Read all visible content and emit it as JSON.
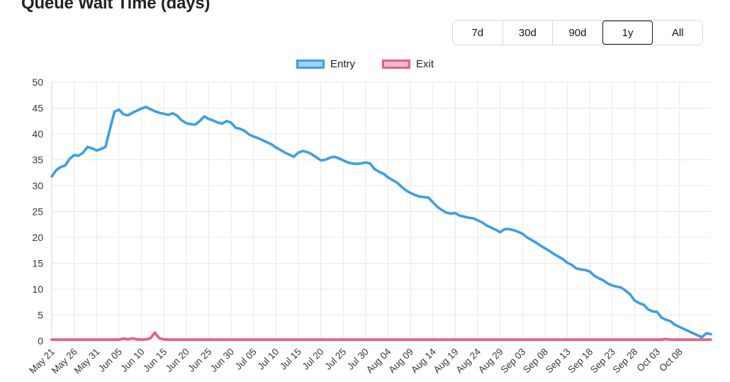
{
  "title": "Queue Wait Time (days)",
  "range_buttons": {
    "options": [
      "7d",
      "30d",
      "90d",
      "1y",
      "All"
    ],
    "selected": "1y"
  },
  "legend": [
    {
      "label": "Entry",
      "border": "#3a9fe8",
      "fill": "#9ed1f5"
    },
    {
      "label": "Exit",
      "border": "#ef5a7d",
      "fill": "#f9bcca"
    }
  ],
  "chart_data": {
    "type": "line",
    "title": "Queue Wait Time (days)",
    "xlabel": "",
    "ylabel": "",
    "ylim": [
      0,
      50
    ],
    "y_ticks": [
      0,
      5,
      10,
      15,
      20,
      25,
      30,
      35,
      40,
      45,
      50
    ],
    "grid": true,
    "legend_position": "top",
    "x_unit": "day",
    "x_tick_every": 5,
    "x_tick_labels": [
      "May 21",
      "May 26",
      "May 31",
      "Jun 05",
      "Jun 10",
      "Jun 15",
      "Jun 20",
      "Jun 25",
      "Jun 30",
      "Jul 05",
      "Jul 10",
      "Jul 15",
      "Jul 20",
      "Jul 25",
      "Jul 30",
      "Aug 04",
      "Aug 09",
      "Aug 14",
      "Aug 19",
      "Aug 24",
      "Aug 29",
      "Sep 03",
      "Sep 08",
      "Sep 13",
      "Sep 18",
      "Sep 23",
      "Sep 28",
      "Oct 03",
      "Oct 08"
    ],
    "series": [
      {
        "name": "Entry",
        "color": "#3a9fe8",
        "values": [
          31.8,
          33.0,
          33.6,
          33.9,
          35.2,
          35.9,
          35.8,
          36.4,
          37.5,
          37.2,
          36.8,
          37.1,
          37.5,
          41.0,
          44.3,
          44.7,
          43.8,
          43.6,
          44.1,
          44.5,
          44.9,
          45.2,
          44.8,
          44.4,
          44.1,
          43.9,
          43.7,
          44.0,
          43.5,
          42.6,
          42.1,
          41.9,
          41.8,
          42.5,
          43.4,
          42.9,
          42.6,
          42.2,
          42.0,
          42.5,
          42.2,
          41.2,
          41.0,
          40.6,
          39.9,
          39.5,
          39.2,
          38.8,
          38.4,
          38.0,
          37.4,
          36.9,
          36.4,
          36.0,
          35.6,
          36.4,
          36.7,
          36.5,
          36.1,
          35.5,
          34.9,
          35.0,
          35.4,
          35.6,
          35.3,
          34.9,
          34.5,
          34.3,
          34.2,
          34.3,
          34.5,
          34.3,
          33.2,
          32.7,
          32.3,
          31.6,
          31.1,
          30.6,
          29.8,
          29.1,
          28.6,
          28.2,
          27.9,
          27.8,
          27.7,
          26.8,
          25.9,
          25.3,
          24.8,
          24.6,
          24.7,
          24.2,
          24.0,
          23.8,
          23.7,
          23.3,
          22.9,
          22.3,
          21.9,
          21.5,
          21.0,
          21.6,
          21.6,
          21.4,
          21.1,
          20.7,
          20.0,
          19.5,
          19.0,
          18.4,
          17.9,
          17.4,
          16.8,
          16.3,
          15.8,
          15.1,
          14.7,
          14.0,
          13.8,
          13.7,
          13.4,
          12.6,
          12.1,
          11.7,
          11.1,
          10.7,
          10.5,
          10.3,
          9.7,
          9.0,
          7.8,
          7.3,
          7.0,
          6.1,
          5.7,
          5.6,
          4.5,
          4.1,
          3.8,
          3.1,
          2.7,
          2.3,
          1.9,
          1.5,
          1.1,
          0.7,
          1.5,
          1.3
        ]
      },
      {
        "name": "Exit",
        "color": "#ef5a7d",
        "values": [
          0.25,
          0.25,
          0.25,
          0.25,
          0.25,
          0.25,
          0.25,
          0.25,
          0.25,
          0.25,
          0.25,
          0.25,
          0.25,
          0.25,
          0.25,
          0.25,
          0.45,
          0.3,
          0.5,
          0.3,
          0.25,
          0.3,
          0.5,
          1.6,
          0.5,
          0.3,
          0.25,
          0.25,
          0.25,
          0.25,
          0.25,
          0.25,
          0.25,
          0.25,
          0.25,
          0.25,
          0.25,
          0.25,
          0.25,
          0.25,
          0.25,
          0.25,
          0.25,
          0.25,
          0.25,
          0.25,
          0.25,
          0.25,
          0.25,
          0.25,
          0.25,
          0.25,
          0.25,
          0.25,
          0.25,
          0.25,
          0.25,
          0.25,
          0.25,
          0.25,
          0.25,
          0.25,
          0.25,
          0.25,
          0.25,
          0.25,
          0.25,
          0.25,
          0.25,
          0.25,
          0.25,
          0.25,
          0.25,
          0.25,
          0.25,
          0.25,
          0.25,
          0.25,
          0.25,
          0.25,
          0.25,
          0.25,
          0.25,
          0.25,
          0.25,
          0.25,
          0.25,
          0.25,
          0.25,
          0.25,
          0.25,
          0.25,
          0.25,
          0.25,
          0.25,
          0.25,
          0.25,
          0.25,
          0.25,
          0.25,
          0.25,
          0.25,
          0.25,
          0.25,
          0.25,
          0.25,
          0.25,
          0.25,
          0.25,
          0.25,
          0.25,
          0.25,
          0.25,
          0.25,
          0.25,
          0.25,
          0.25,
          0.25,
          0.25,
          0.25,
          0.25,
          0.25,
          0.25,
          0.25,
          0.25,
          0.25,
          0.25,
          0.25,
          0.25,
          0.25,
          0.25,
          0.25,
          0.25,
          0.25,
          0.25,
          0.25,
          0.25,
          0.35,
          0.25,
          0.25,
          0.25,
          0.25,
          0.25,
          0.25,
          0.25,
          0.25,
          0.25,
          0.25
        ]
      }
    ]
  }
}
